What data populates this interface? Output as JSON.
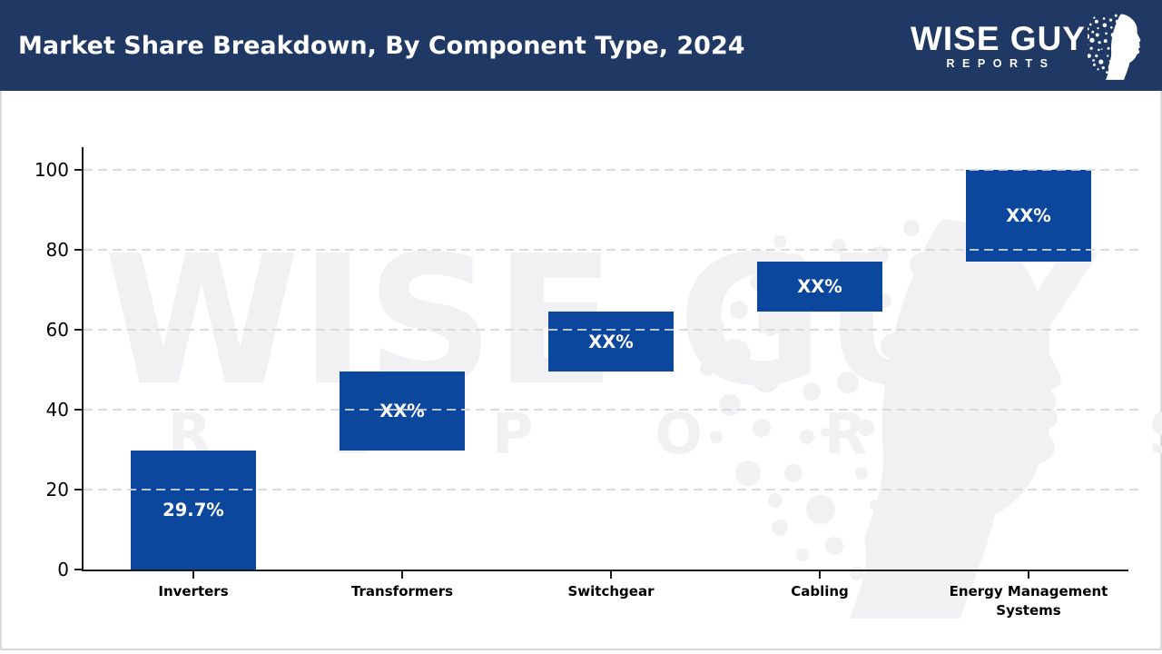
{
  "header": {
    "title": "Market Share Breakdown, By Component Type, 2024",
    "bg_color": "#1F3864",
    "logo": {
      "line1": "WISE GUY",
      "line2": "REPORTS"
    }
  },
  "watermark": {
    "line1": "WISE GUY",
    "line2": "R E P O R T S"
  },
  "chart_data": {
    "type": "bar",
    "subtype": "waterfall",
    "title": "Market Share Breakdown, By Component Type, 2024",
    "categories": [
      "Inverters",
      "Transformers",
      "Switchgear",
      "Cabling",
      "Energy Management Systems"
    ],
    "series": [
      {
        "name": "Market Share (%)",
        "segments": [
          {
            "category": "Inverters",
            "start": 0,
            "end": 29.7,
            "label": "29.7%"
          },
          {
            "category": "Transformers",
            "start": 29.7,
            "end": 49.5,
            "label": "XX%"
          },
          {
            "category": "Switchgear",
            "start": 49.5,
            "end": 64.5,
            "label": "XX%"
          },
          {
            "category": "Cabling",
            "start": 64.5,
            "end": 77.0,
            "label": "XX%"
          },
          {
            "category": "Energy Management Systems",
            "start": 77.0,
            "end": 100.0,
            "label": "XX%"
          }
        ]
      }
    ],
    "xlabel": "",
    "ylabel": "",
    "ylim": [
      0,
      100
    ],
    "yticks": [
      0,
      20,
      40,
      60,
      80,
      100
    ],
    "grid": "horizontal-dashed",
    "legend": "none",
    "bar_color": "#0B479D",
    "bar_label_color": "#FFFFFF",
    "axis_color": "#1A1A1A",
    "gridline_color": "#D9D9D9"
  }
}
